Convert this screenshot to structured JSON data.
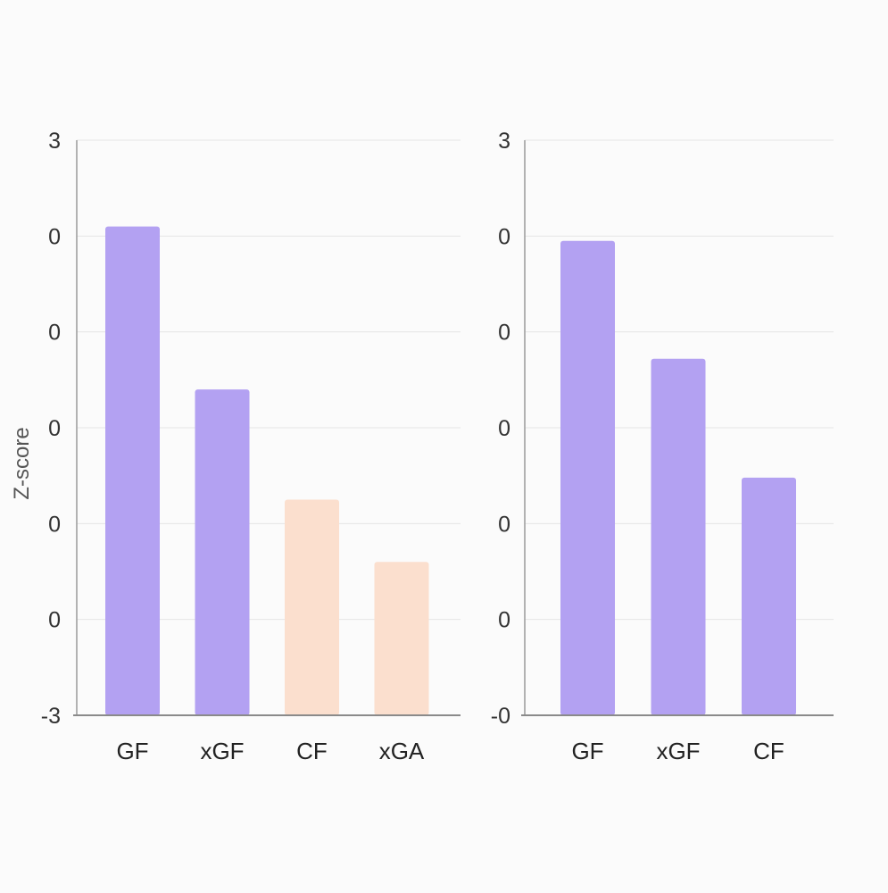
{
  "chart_data": [
    {
      "type": "bar",
      "ylabel": "Z-score",
      "ylim": [
        -3,
        3
      ],
      "yticks": [
        "3",
        "0",
        "0",
        "0",
        "0",
        "0",
        "-3"
      ],
      "grid": true,
      "categories": [
        "GF",
        "xGF",
        "CF",
        "xGA"
      ],
      "values": [
        2.1,
        0.4,
        -0.75,
        -1.4
      ],
      "colors": [
        "#b3a1f2",
        "#b3a1f2",
        "#fbdfce",
        "#fbdfce"
      ]
    },
    {
      "type": "bar",
      "ylabel": "",
      "ylim": [
        -3,
        3
      ],
      "yticks": [
        "3",
        "0",
        "0",
        "0",
        "0",
        "0",
        "-0"
      ],
      "grid": true,
      "categories": [
        "GF",
        "xGF",
        "CF"
      ],
      "values": [
        1.95,
        0.72,
        -0.52
      ],
      "colors": [
        "#b3a1f2",
        "#b3a1f2",
        "#b3a1f2"
      ]
    }
  ]
}
